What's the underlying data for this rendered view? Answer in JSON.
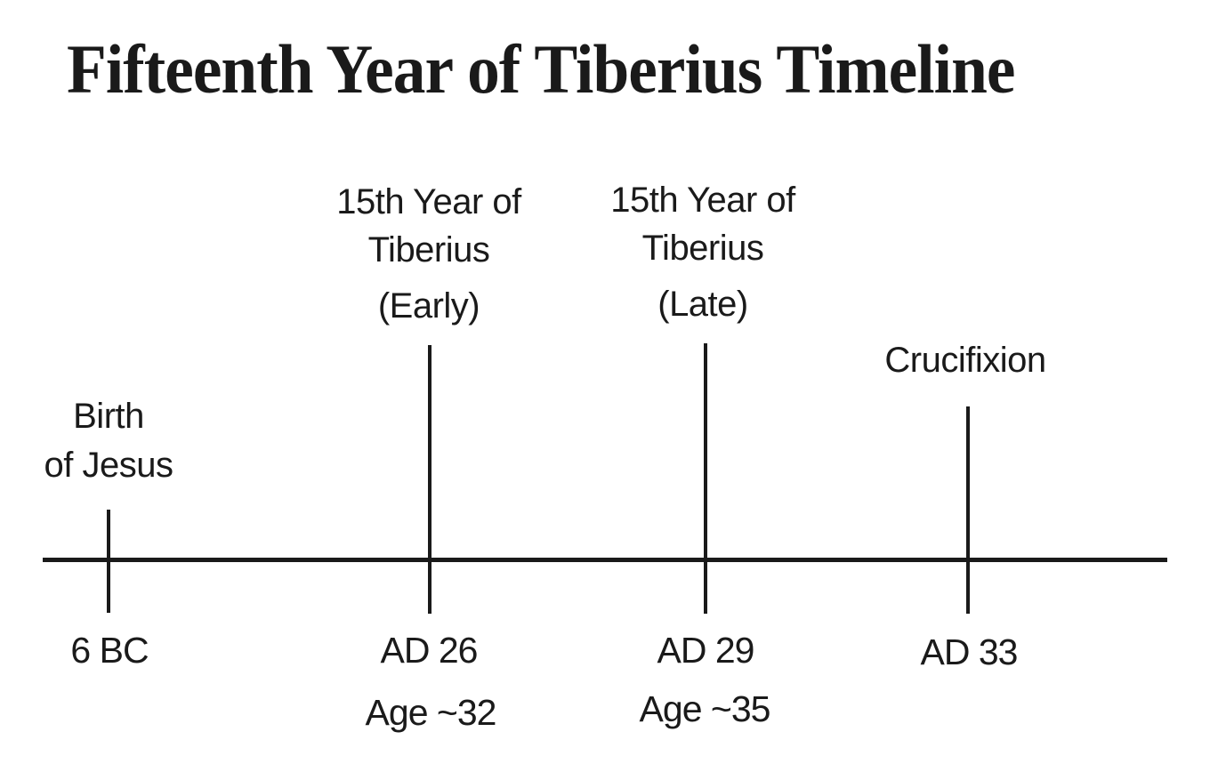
{
  "colors": {
    "ink": "#1a1a1a",
    "background": "#ffffff"
  },
  "title": "Fifteenth Year of Tiberius Timeline",
  "timeline": {
    "events": [
      {
        "name": "birth-of-jesus",
        "label_lines": [
          "Birth",
          "of Jesus"
        ],
        "qualifier": "",
        "date": "6 BC",
        "age": ""
      },
      {
        "name": "fifteenth-year-of-tiberius-early",
        "label_lines": [
          "15th Year of",
          "Tiberius"
        ],
        "qualifier": "(Early)",
        "date": "AD 26",
        "age": "Age ~32"
      },
      {
        "name": "fifteenth-year-of-tiberius-late",
        "label_lines": [
          "15th Year of",
          "Tiberius"
        ],
        "qualifier": "(Late)",
        "date": "AD 29",
        "age": "Age ~35"
      },
      {
        "name": "crucifixion",
        "label_lines": [
          "Crucifixion"
        ],
        "qualifier": "",
        "date": "AD 33",
        "age": ""
      }
    ]
  }
}
